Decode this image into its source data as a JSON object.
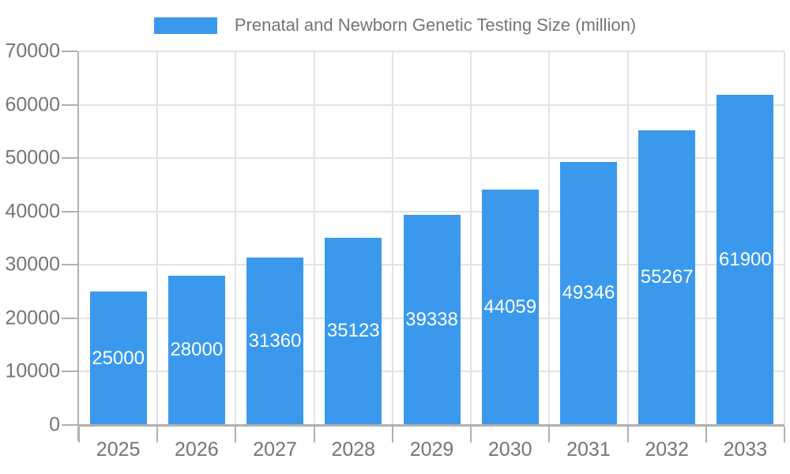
{
  "legend": {
    "label": "Prenatal and Newborn Genetic Testing Size (million)"
  },
  "chart_data": {
    "type": "bar",
    "title": "",
    "xlabel": "",
    "ylabel": "",
    "categories": [
      "2025",
      "2026",
      "2027",
      "2028",
      "2029",
      "2030",
      "2031",
      "2032",
      "2033"
    ],
    "series": [
      {
        "name": "Prenatal and Newborn Genetic Testing Size (million)",
        "values": [
          25000,
          28000,
          31360,
          35123,
          39338,
          44059,
          49346,
          55267,
          61900
        ]
      }
    ],
    "value_labels_shown": true,
    "ylim": [
      0,
      70000
    ],
    "yticks": [
      0,
      10000,
      20000,
      30000,
      40000,
      50000,
      60000,
      70000
    ],
    "grid": true,
    "legend_position": "top-center",
    "colors": {
      "bar": "#3a99ec",
      "value_label": "#ffffff",
      "axis": "#b0b0b0",
      "gridline": "#e3e3e3",
      "text": "#757575",
      "background": "#ffffff"
    }
  }
}
